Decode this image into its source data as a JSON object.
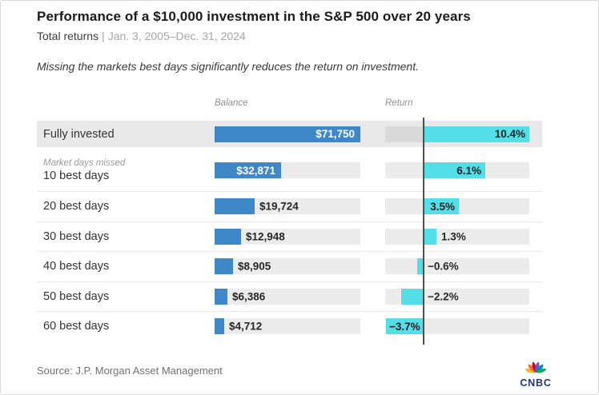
{
  "header": {
    "title": "Performance of a $10,000 investment in the S&P 500 over 20 years",
    "subtitle": "Total returns",
    "subtitle_separator": "|",
    "subtitle_date_range": "Jan. 3, 2005–Dec. 31, 2024",
    "note": "Missing the markets best days significantly reduces the return on investment."
  },
  "columns": {
    "balance": "Balance",
    "return": "Return"
  },
  "chart_data": {
    "type": "bar",
    "orientation": "horizontal",
    "title": "Performance of a $10,000 investment in the S&P 500 over 20 years",
    "subtitle": "Total returns | Jan. 3, 2005–Dec. 31, 2024",
    "annotation": "Missing the markets best days significantly reduces the return on investment.",
    "categories": [
      "Fully invested",
      "10 best days",
      "20 best days",
      "30 best days",
      "40 best days",
      "50 best days",
      "60 best days"
    ],
    "category_sublabels": [
      null,
      "Market days missed",
      null,
      null,
      null,
      null,
      null
    ],
    "highlighted_category_index": 0,
    "grid": false,
    "legend_position": "none",
    "series": [
      {
        "name": "Balance",
        "unit": "USD",
        "color": "#3e87c9",
        "axis_max": 71750,
        "values": [
          71750,
          32871,
          19724,
          12948,
          8905,
          6386,
          4712
        ],
        "labels": [
          "$71,750",
          "$32,871",
          "$19,724",
          "$12,948",
          "$8,905",
          "$6,386",
          "$4,712"
        ]
      },
      {
        "name": "Return",
        "unit": "percent",
        "color": "#53dee8",
        "axis_range": [
          -3.78,
          10.4
        ],
        "values": [
          10.4,
          6.1,
          3.5,
          1.3,
          -0.6,
          -2.2,
          -3.7
        ],
        "labels": [
          "10.4%",
          "6.1%",
          "3.5%",
          "1.3%",
          "−0.6%",
          "−2.2%",
          "−3.7%"
        ]
      }
    ]
  },
  "footer": {
    "source": "Source: J.P. Morgan Asset Management",
    "logo_text": "CNBC"
  },
  "colors": {
    "balance_bar": "#3e87c9",
    "return_bar": "#53dee8",
    "highlight_row_bg": "#e9e9e9",
    "track_bg": "#ececec",
    "axis_line": "#4f4f4f",
    "peacock": [
      "#fcb711",
      "#f37021",
      "#cc004c",
      "#6460aa",
      "#0089d0",
      "#0db14b"
    ]
  }
}
